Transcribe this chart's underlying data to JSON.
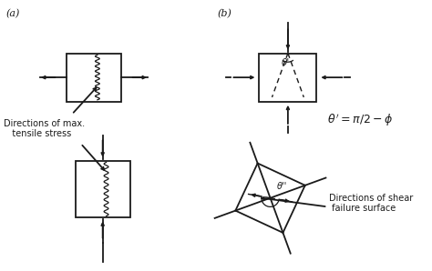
{
  "bg_color": "#ffffff",
  "line_color": "#1a1a1a",
  "label_a": "(a)",
  "label_b": "(b)",
  "text_max_tensile": "Directions of max.\n   tensile stress",
  "text_shear": "Directions of shear\n failure surface",
  "theta_label": "θ'",
  "theta_label2": "θ''",
  "fig_w": 4.74,
  "fig_h": 2.98,
  "dpi": 100
}
